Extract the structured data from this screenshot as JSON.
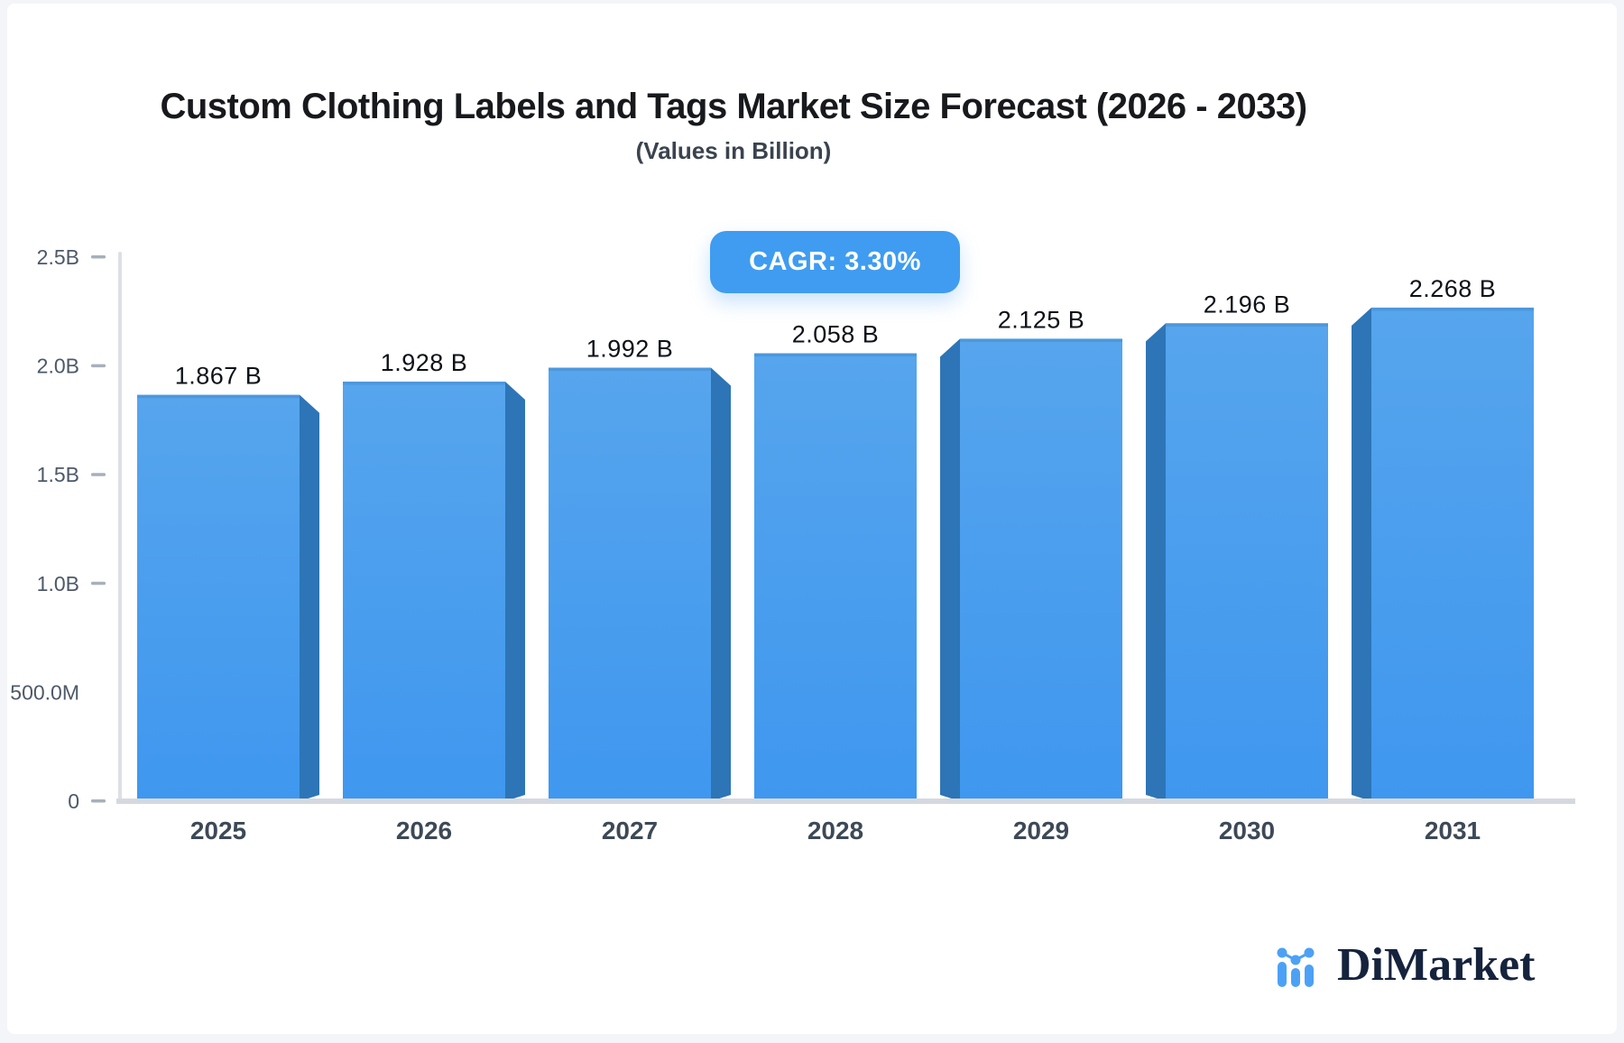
{
  "page": {
    "background": "#f3f5f8",
    "card_background": "#ffffff"
  },
  "header": {
    "title": "Custom Clothing Labels and Tags Market Size Forecast (2026 - 2033)",
    "subtitle": "(Values in Billion)"
  },
  "badge": {
    "label": "CAGR: 3.30%",
    "background": "#3f9cf0",
    "text_color": "#ffffff"
  },
  "chart_data": {
    "type": "bar",
    "title": "Custom Clothing Labels and Tags Market Size Forecast (2026 - 2033)",
    "subtitle": "(Values in Billion)",
    "cagr_label": "CAGR: 3.30%",
    "categories": [
      "2025",
      "2026",
      "2027",
      "2028",
      "2029",
      "2030",
      "2031"
    ],
    "values": [
      1.867,
      1.928,
      1.992,
      2.058,
      2.125,
      2.196,
      2.268
    ],
    "value_labels": [
      "1.867 B",
      "1.928 B",
      "1.992 B",
      "2.058 B",
      "2.125 B",
      "2.196 B",
      "2.268 B"
    ],
    "unit": "Billion",
    "ylim": [
      0,
      2.5
    ],
    "y_ticks": [
      {
        "label": "2.5B",
        "value": 2.5,
        "dash": true
      },
      {
        "label": "2.0B",
        "value": 2.0,
        "dash": true
      },
      {
        "label": "1.5B",
        "value": 1.5,
        "dash": true
      },
      {
        "label": "1.0B",
        "value": 1.0,
        "dash": true
      },
      {
        "label": "500.0M",
        "value": 0.5,
        "dash": false
      },
      {
        "label": "0",
        "value": 0.0,
        "dash": true
      }
    ],
    "grid": false,
    "legend": false,
    "colors": {
      "bar_front_top": "#56a5ed",
      "bar_front_bottom": "#3f97ef",
      "bar_top_edge": "#4d97dd",
      "bar_side": "#2d75b6",
      "axis_line": "#dcdfe4",
      "baseline": "#d5d9df",
      "tick_dash": "#a7b0ba"
    }
  },
  "brand": {
    "name": "DiMarket",
    "text_color": "#16233d",
    "icon_color": "#4da1f4",
    "icon": "bar-chart-logo-icon"
  }
}
